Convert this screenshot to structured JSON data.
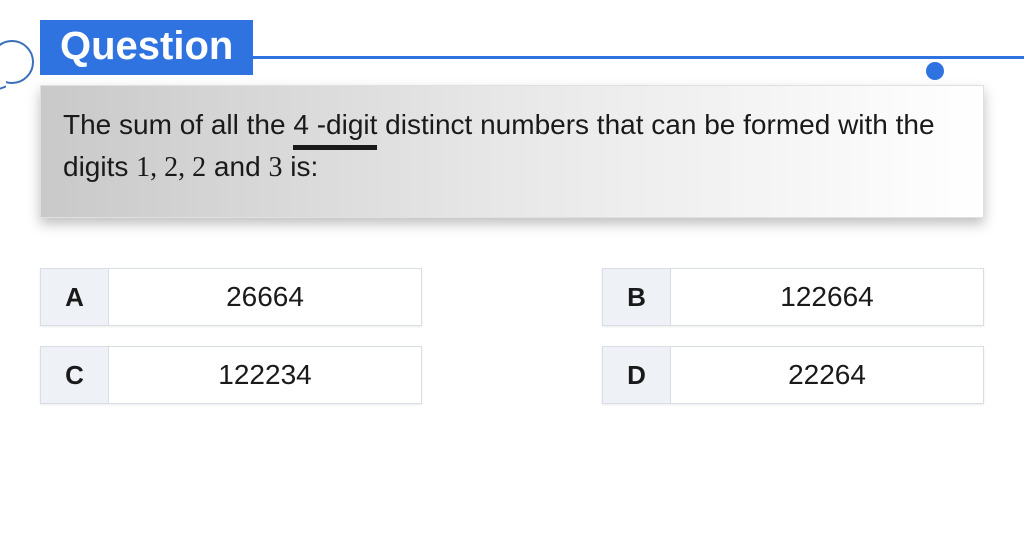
{
  "header": {
    "banner_label": "Question",
    "banner_bg": "#2f73e0",
    "banner_fg": "#ffffff"
  },
  "question": {
    "pre_text": "The sum of all the ",
    "underlined": "4 -digit",
    "mid_text": " distinct numbers that can be formed with the digits ",
    "math_part": "1, 2, 2",
    "post_math": " and ",
    "last_digit": "3",
    "tail": " is:"
  },
  "options": {
    "a": {
      "letter": "A",
      "value": "26664"
    },
    "b": {
      "letter": "B",
      "value": "122664"
    },
    "c": {
      "letter": "C",
      "value": "122234"
    },
    "d": {
      "letter": "D",
      "value": "22264"
    }
  },
  "style": {
    "question_gradient_from": "#c9c9c9",
    "question_gradient_to": "#ffffff",
    "option_border": "#d8dde6",
    "option_letter_bg": "#eef2f7"
  }
}
